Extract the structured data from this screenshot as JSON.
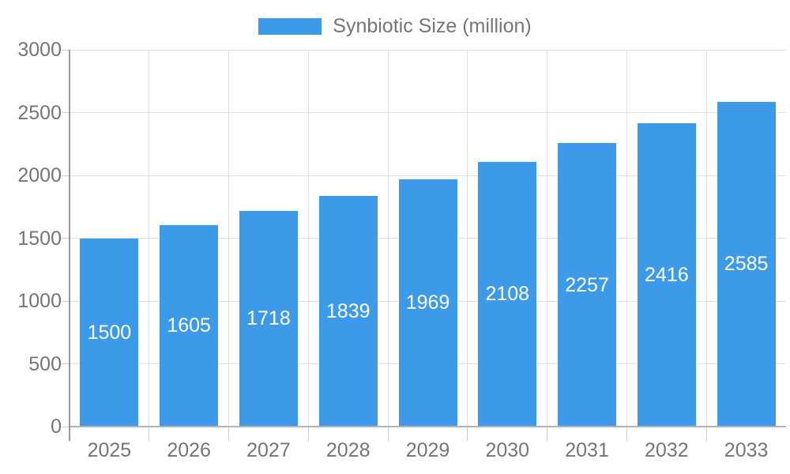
{
  "chart_data": {
    "type": "bar",
    "title": "",
    "legend": "Synbiotic Size (million)",
    "legend_position": "top-center",
    "categories": [
      "2025",
      "2026",
      "2027",
      "2028",
      "2029",
      "2030",
      "2031",
      "2032",
      "2033"
    ],
    "series": [
      {
        "name": "Synbiotic Size (million)",
        "values": [
          1500,
          1605,
          1718,
          1839,
          1969,
          2108,
          2257,
          2416,
          2585
        ]
      }
    ],
    "bar_value_labels": [
      "1500",
      "1605",
      "1718",
      "1839",
      "1969",
      "2108",
      "2257",
      "2416",
      "2585"
    ],
    "xlabel": "",
    "ylabel": "",
    "ylim": [
      0,
      3000
    ],
    "yticks": [
      0,
      500,
      1000,
      1500,
      2000,
      2500,
      3000
    ],
    "ytick_labels": [
      "0",
      "500",
      "1000",
      "1500",
      "2000",
      "2500",
      "3000"
    ],
    "grid": "horizontal gridlines at each y tick plus vertical gridlines at category boundaries",
    "value_labels_style": "white numbers centered inside each bar"
  },
  "colors": {
    "bar": "#3D9AE8",
    "bar_label": "#FFFFFF",
    "axis_text": "#757575",
    "legend_text": "#757575",
    "grid": "#E0E0E0",
    "y_axis_line": "#999999",
    "baseline": "#B3B3B3",
    "tick": "#CCCCCC",
    "background": "#FFFFFF"
  }
}
